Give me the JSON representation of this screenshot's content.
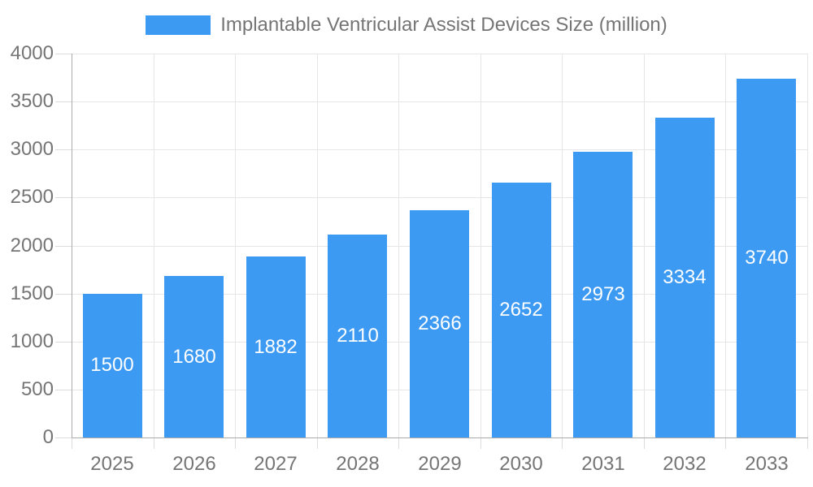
{
  "legend": {
    "label": "Implantable Ventricular Assist Devices Size (million)"
  },
  "colors": {
    "bar": "#3d9af2",
    "grid": "#e6e6e6",
    "axis": "#ababab",
    "tick": "#dcdcdc",
    "axis_text": "#757575",
    "value_label": "#ffffff",
    "background": "#ffffff"
  },
  "chart_data": {
    "type": "bar",
    "title": "Implantable Ventricular Assist Devices Size (million)",
    "categories": [
      "2025",
      "2026",
      "2027",
      "2028",
      "2029",
      "2030",
      "2031",
      "2032",
      "2033"
    ],
    "values": [
      1500,
      1680,
      1882,
      2110,
      2366,
      2652,
      2973,
      3334,
      3740
    ],
    "xlabel": "",
    "ylabel": "",
    "ylim": [
      0,
      4000
    ],
    "ytick_step": 500,
    "ytick_labels": [
      "0",
      "500",
      "1000",
      "1500",
      "2000",
      "2500",
      "3000",
      "3500",
      "4000"
    ],
    "grid": true,
    "legend_position": "top",
    "value_labels": "inside-center"
  }
}
